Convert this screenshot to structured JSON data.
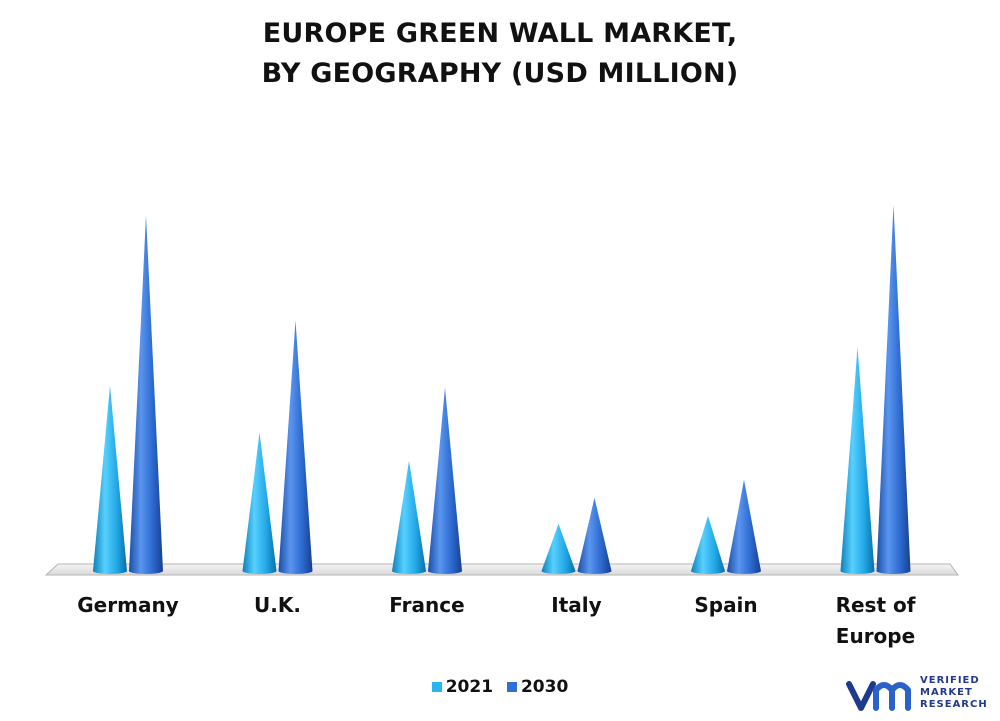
{
  "chart_data": {
    "type": "bar",
    "title_lines": [
      "EUROPE GREEN WALL MARKET,",
      "BY GEOGRAPHY (USD MILLION)"
    ],
    "categories": [
      "Germany",
      "U.K.",
      "France",
      "Italy",
      "Spain",
      "Rest of Europe"
    ],
    "series": [
      {
        "name": "2021",
        "values": [
          185,
          138,
          110,
          47,
          55,
          223
        ],
        "color": "#29b6f0"
      },
      {
        "name": "2030",
        "values": [
          355,
          250,
          183,
          73,
          91,
          365
        ],
        "color": "#2f6fd6"
      }
    ],
    "ylim": [
      0,
      380
    ],
    "grid": false,
    "legend": "bottom-center",
    "shape": "cone"
  },
  "logo": {
    "line1": "VERIFIED",
    "line2": "MARKET",
    "line3": "RESEARCH"
  }
}
